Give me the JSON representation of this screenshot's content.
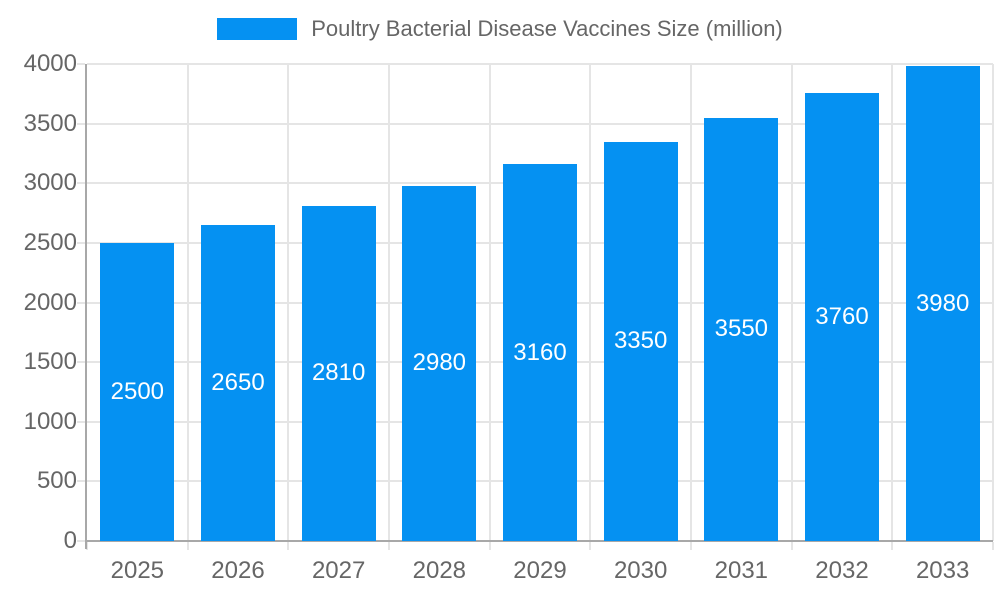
{
  "chart_data": {
    "type": "bar",
    "title": "Poultry Bacterial Disease Vaccines Size (million)",
    "legend_label": "Poultry Bacterial Disease Vaccines Size (million)",
    "legend_position": "top",
    "categories": [
      "2025",
      "2026",
      "2027",
      "2028",
      "2029",
      "2030",
      "2031",
      "2032",
      "2033"
    ],
    "values": [
      2500,
      2650,
      2810,
      2980,
      3160,
      3350,
      3550,
      3760,
      3980
    ],
    "xlabel": "",
    "ylabel": "",
    "ylim": [
      0,
      4000
    ],
    "ytick_step": 500,
    "yticks": [
      0,
      500,
      1000,
      1500,
      2000,
      2500,
      3000,
      3500,
      4000
    ],
    "grid": true,
    "colors": {
      "bar": "#0591F2",
      "grid": "#e5e5e5",
      "axis": "#a8a8a8",
      "axis_text": "#666666",
      "value_text": "#ffffff"
    }
  }
}
